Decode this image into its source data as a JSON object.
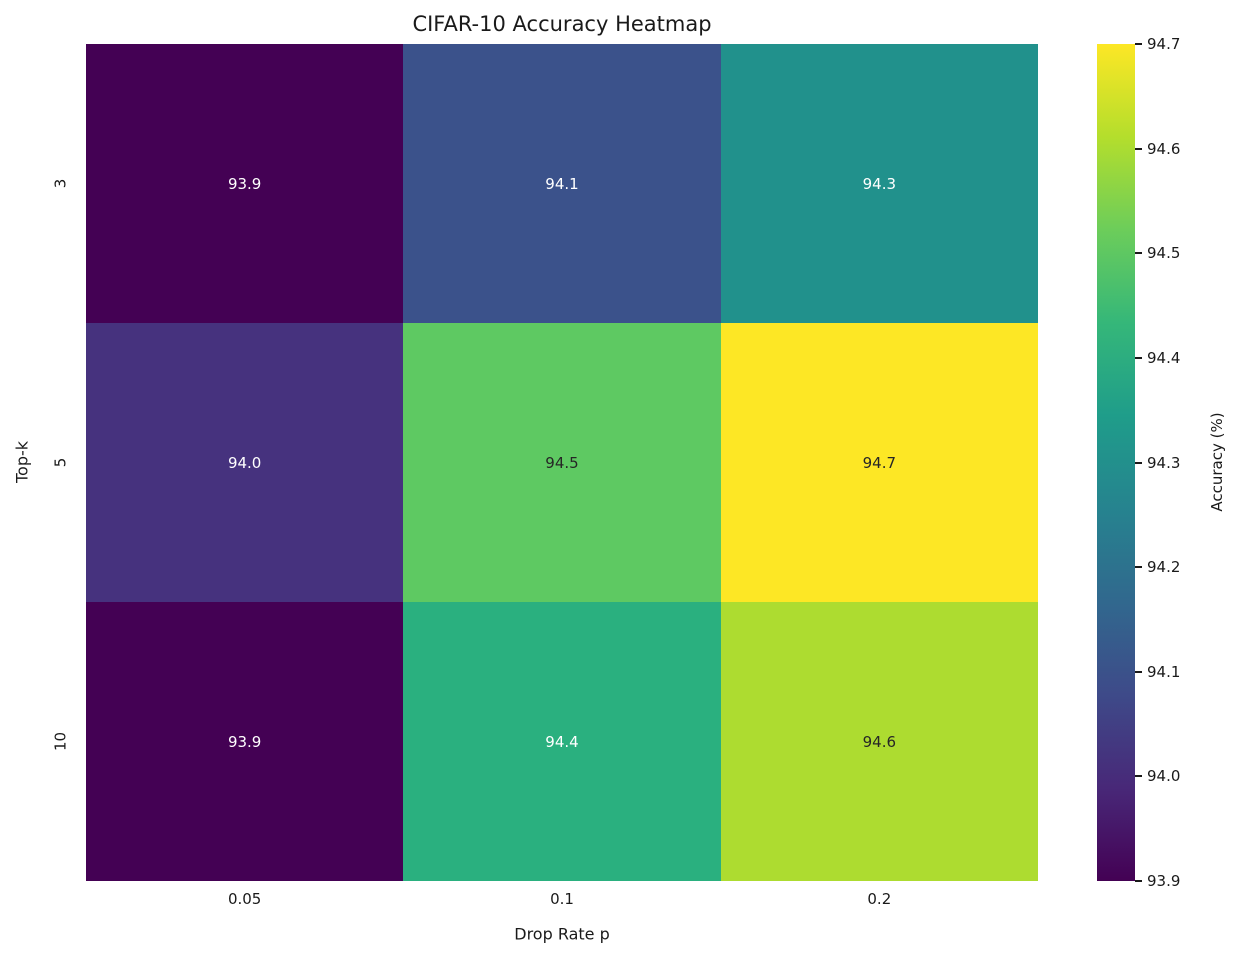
{
  "title": "CIFAR-10 Accuracy Heatmap",
  "chart_data": {
    "type": "heatmap",
    "title": "CIFAR-10 Accuracy Heatmap",
    "xlabel": "Drop Rate p",
    "ylabel": "Top-k",
    "x_ticks": [
      "0.05",
      "0.1",
      "0.2"
    ],
    "y_ticks": [
      "3",
      "5",
      "10"
    ],
    "values": [
      [
        93.9,
        94.1,
        94.3
      ],
      [
        94.0,
        94.5,
        94.7
      ],
      [
        93.9,
        94.4,
        94.6
      ]
    ],
    "cell_labels": [
      [
        "93.9",
        "94.1",
        "94.3"
      ],
      [
        "94.0",
        "94.5",
        "94.7"
      ],
      [
        "93.9",
        "94.4",
        "94.6"
      ]
    ],
    "vmin": 93.9,
    "vmax": 94.7,
    "colormap": "viridis",
    "grid": false,
    "cell_colors": [
      [
        "#440154",
        "#3b528b",
        "#21918c"
      ],
      [
        "#46327e",
        "#5ec962",
        "#fde725"
      ],
      [
        "#440154",
        "#2ab07f",
        "#addc30"
      ]
    ],
    "cell_text_colors": [
      [
        "#ffffff",
        "#ffffff",
        "#ffffff"
      ],
      [
        "#ffffff",
        "#262626",
        "#262626"
      ],
      [
        "#ffffff",
        "#ffffff",
        "#262626"
      ]
    ],
    "colorbar": {
      "label": "Accuracy (%)",
      "ticks": [
        "94.7",
        "94.6",
        "94.5",
        "94.4",
        "94.3",
        "94.2",
        "94.1",
        "94.0",
        "93.9"
      ],
      "tick_color": "#1a1a1a"
    }
  }
}
